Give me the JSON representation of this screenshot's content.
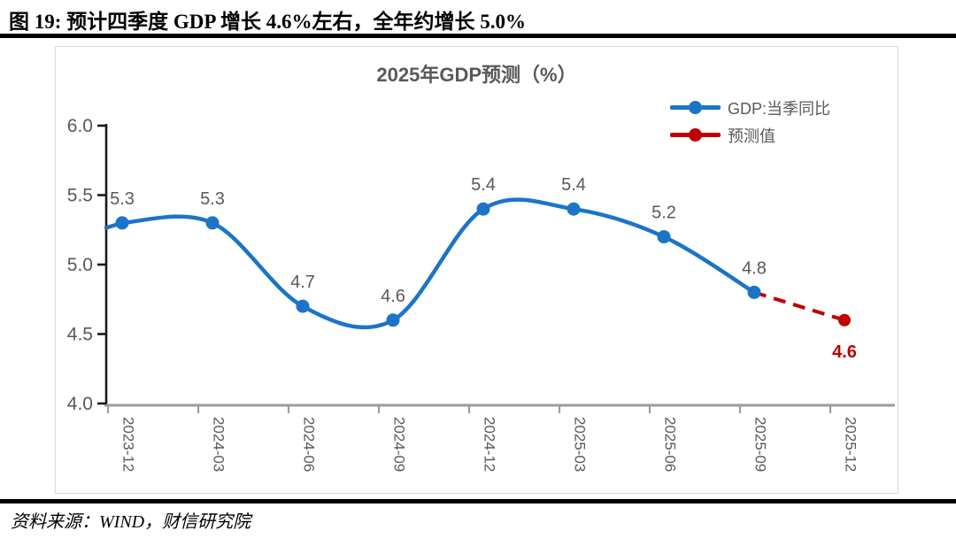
{
  "header": {
    "title": "图 19: 预计四季度 GDP 增长 4.6%左右，全年约增长 5.0%"
  },
  "chart": {
    "title": "2025年GDP预测（%）",
    "legend": [
      {
        "label": "GDP:当季同比",
        "color_key": "actual"
      },
      {
        "label": "预测值",
        "color_key": "forecast"
      }
    ]
  },
  "chart_data": {
    "type": "line",
    "title": "2025年GDP预测（%）",
    "categories": [
      "2023-12",
      "2024-03",
      "2024-06",
      "2024-09",
      "2024-12",
      "2025-03",
      "2025-06",
      "2025-09",
      "2025-12"
    ],
    "series": [
      {
        "name": "GDP:当季同比",
        "style": "solid-smooth",
        "color": "#1B74C8",
        "values": [
          5.3,
          5.3,
          4.7,
          4.6,
          5.4,
          5.4,
          5.2,
          4.8,
          null
        ]
      },
      {
        "name": "预测值",
        "style": "dashed",
        "color": "#C00000",
        "values": [
          null,
          null,
          null,
          null,
          null,
          null,
          null,
          4.8,
          4.6
        ]
      }
    ],
    "data_labels": [
      "5.3",
      "5.3",
      "4.7",
      "4.6",
      "5.4",
      "5.4",
      "5.2",
      "4.8"
    ],
    "forecast_label": "4.6",
    "ylim": [
      4.0,
      6.0
    ],
    "y_ticks": [
      6.0,
      5.5,
      5.0,
      4.5,
      4.0
    ],
    "y_tick_labels": [
      "6.0",
      "5.5",
      "5.0",
      "4.5",
      "4.0"
    ],
    "grid": false,
    "legend_position": "top-right"
  },
  "colors": {
    "actual": "#1B74C8",
    "forecast": "#C00000",
    "text_gray": "#595959",
    "axis_gray": "#9c9c9c",
    "axis_black": "#1a1a1a"
  },
  "footer": {
    "source": "资料来源：WIND，财信研究院"
  }
}
